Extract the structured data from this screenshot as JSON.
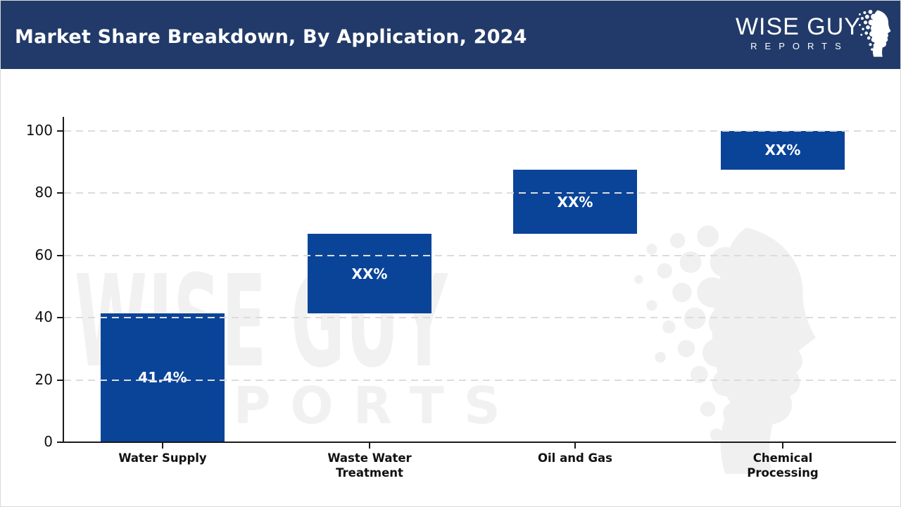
{
  "header": {
    "title": "Market Share Breakdown, By Application, 2024",
    "logo": {
      "wordmark": "WISE GUY",
      "subtext": "REPORTS"
    }
  },
  "watermark": {
    "wordmark": "WISE GUY",
    "subtext": "REPORTS"
  },
  "chart_data": {
    "type": "bar",
    "variant": "waterfall",
    "title": "Market Share Breakdown, By Application, 2024",
    "xlabel": "",
    "ylabel": "",
    "ylim": [
      0,
      105
    ],
    "yticks": [
      0,
      20,
      40,
      60,
      80,
      100
    ],
    "grid": "horizontal-dashed",
    "legend": "none",
    "bar_color": "#0a4499",
    "categories": [
      "Water Supply",
      "Waste Water Treatment",
      "Oil and Gas",
      "Chemical Processing"
    ],
    "category_lines": [
      [
        "Water Supply"
      ],
      [
        "Waste Water",
        "Treatment"
      ],
      [
        "Oil and Gas"
      ],
      [
        "Chemical",
        "Processing"
      ]
    ],
    "segments": [
      {
        "category": "Water Supply",
        "start": 0,
        "end": 41.4,
        "label": "41.4%"
      },
      {
        "category": "Waste Water Treatment",
        "start": 41.4,
        "end": 66.9,
        "label": "XX%"
      },
      {
        "category": "Oil and Gas",
        "start": 66.9,
        "end": 87.6,
        "label": "XX%"
      },
      {
        "category": "Chemical Processing",
        "start": 87.6,
        "end": 100,
        "label": "XX%"
      }
    ]
  },
  "colors": {
    "header_bg": "#213a69",
    "bar": "#0a4499",
    "gridline": "#dcdcdc",
    "axis": "#1a1a1a",
    "watermark": "#f1f1f1"
  }
}
